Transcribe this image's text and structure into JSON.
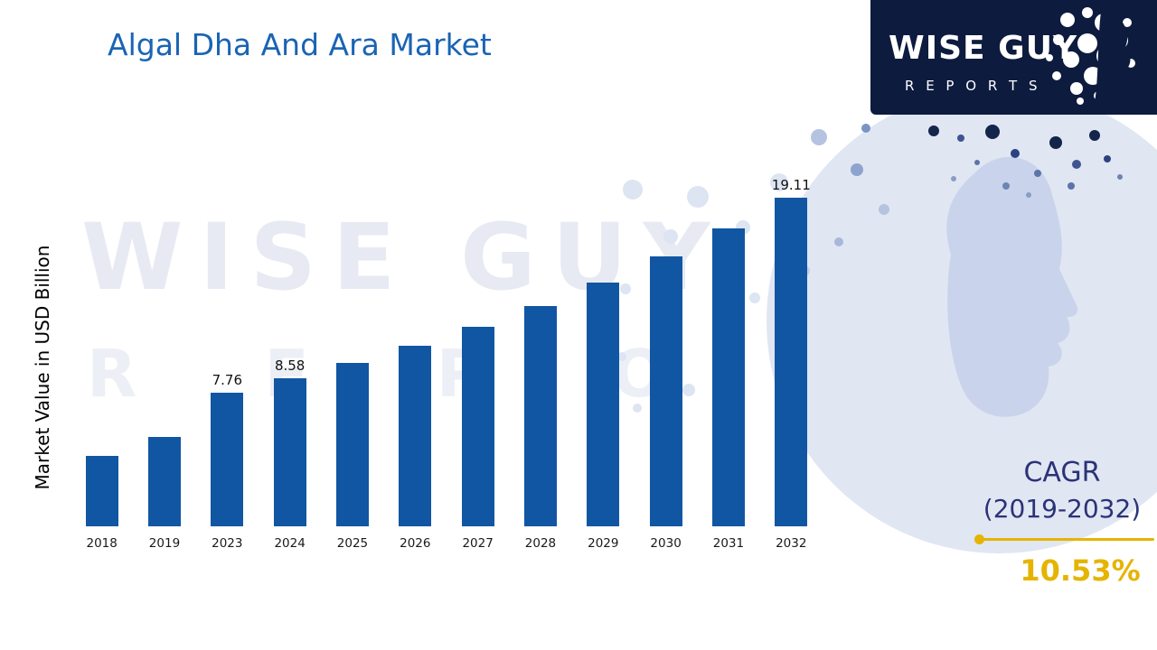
{
  "title": "Algal Dha And Ara Market",
  "watermark": {
    "line1": "WISE GUY",
    "line2": "R E P O R T S"
  },
  "logo": {
    "line1": "WISE GUY",
    "line2": "R E P O R T S"
  },
  "cagr": {
    "label": "CAGR",
    "range": "(2019-2032)",
    "value": "10.53%"
  },
  "colors": {
    "bar": "#1156a3",
    "title": "#1a64b4",
    "navy_panel": "#0d1b3e",
    "gold": "#e5b400",
    "cagr_text": "#2a3377",
    "watermark": "#e7eaf3",
    "circle": "#e1e6f3"
  },
  "chart_data": {
    "type": "bar",
    "title": "Algal Dha And Ara Market",
    "xlabel": "",
    "ylabel": "Market Value in USD Billion",
    "categories": [
      "2018",
      "2019",
      "2023",
      "2024",
      "2025",
      "2026",
      "2027",
      "2028",
      "2029",
      "2030",
      "2031",
      "2032"
    ],
    "values": [
      4.1,
      5.2,
      7.76,
      8.58,
      9.48,
      10.48,
      11.58,
      12.8,
      14.15,
      15.64,
      17.29,
      19.11
    ],
    "bar_labels": [
      "",
      "",
      "7.76",
      "8.58",
      "",
      "",
      "",
      "",
      "",
      "",
      "",
      "19.11"
    ],
    "ylim": [
      0,
      20
    ],
    "grid": false,
    "legend": null,
    "bar_color": "#1156a3",
    "cagr_percent": 10.53,
    "cagr_period": "2019-2032"
  }
}
